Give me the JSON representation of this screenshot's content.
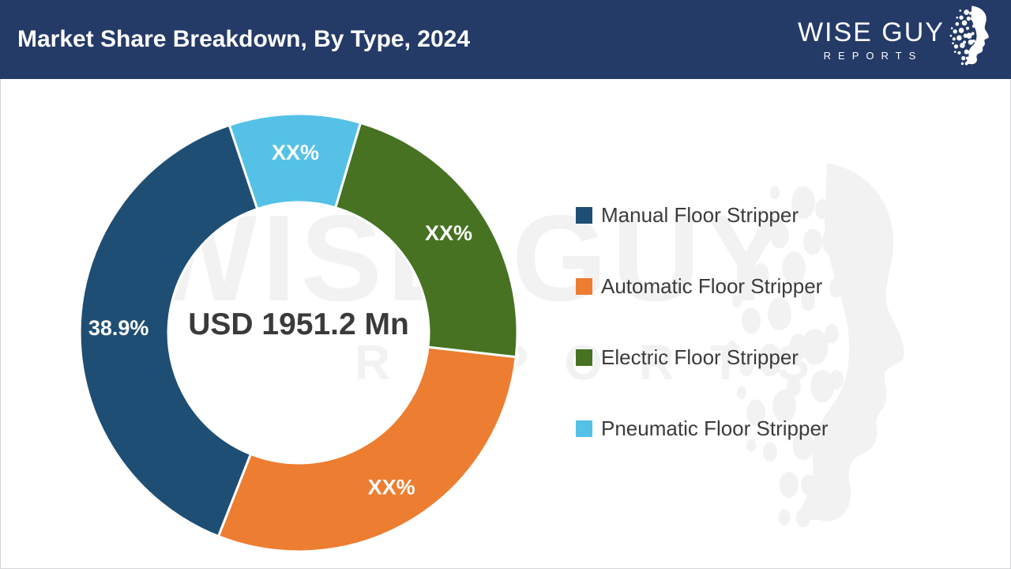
{
  "header": {
    "title": "Market Share Breakdown, By Type, 2024",
    "logo": {
      "line1": "WISE GUY",
      "line2": "REPORTS"
    }
  },
  "watermark": {
    "line1": "WISE GUY",
    "line2": "REPORTS"
  },
  "chart_data": {
    "type": "pie",
    "subtype": "donut",
    "title": "Market Share Breakdown, By Type, 2024",
    "center_label": "USD 1951.2 Mn",
    "legend_position": "right",
    "start_angle_deg": 201.5,
    "draw_order": [
      "Manual Floor Stripper",
      "Pneumatic Floor Stripper",
      "Electric Floor Stripper",
      "Automatic Floor Stripper"
    ],
    "segments": [
      {
        "name": "Manual Floor Stripper",
        "label": "38.9%",
        "share_pct": 38.9,
        "color": "#1f4e74"
      },
      {
        "name": "Automatic Floor Stripper",
        "label": "XX%",
        "share_pct": 29.2,
        "color": "#ed7d31"
      },
      {
        "name": "Electric Floor Stripper",
        "label": "XX%",
        "share_pct": 22.2,
        "color": "#467222"
      },
      {
        "name": "Pneumatic Floor Stripper",
        "label": "XX%",
        "share_pct": 9.7,
        "color": "#55c1e7"
      }
    ]
  },
  "colors": {
    "header_bg": "#243a67",
    "title_text": "#ffffff",
    "center_text": "#3a3a3a",
    "legend_text": "#3b3b3b",
    "watermark": "#f2f2f3",
    "border": "#d6d6d9",
    "segment_gap": "#ffffff"
  }
}
